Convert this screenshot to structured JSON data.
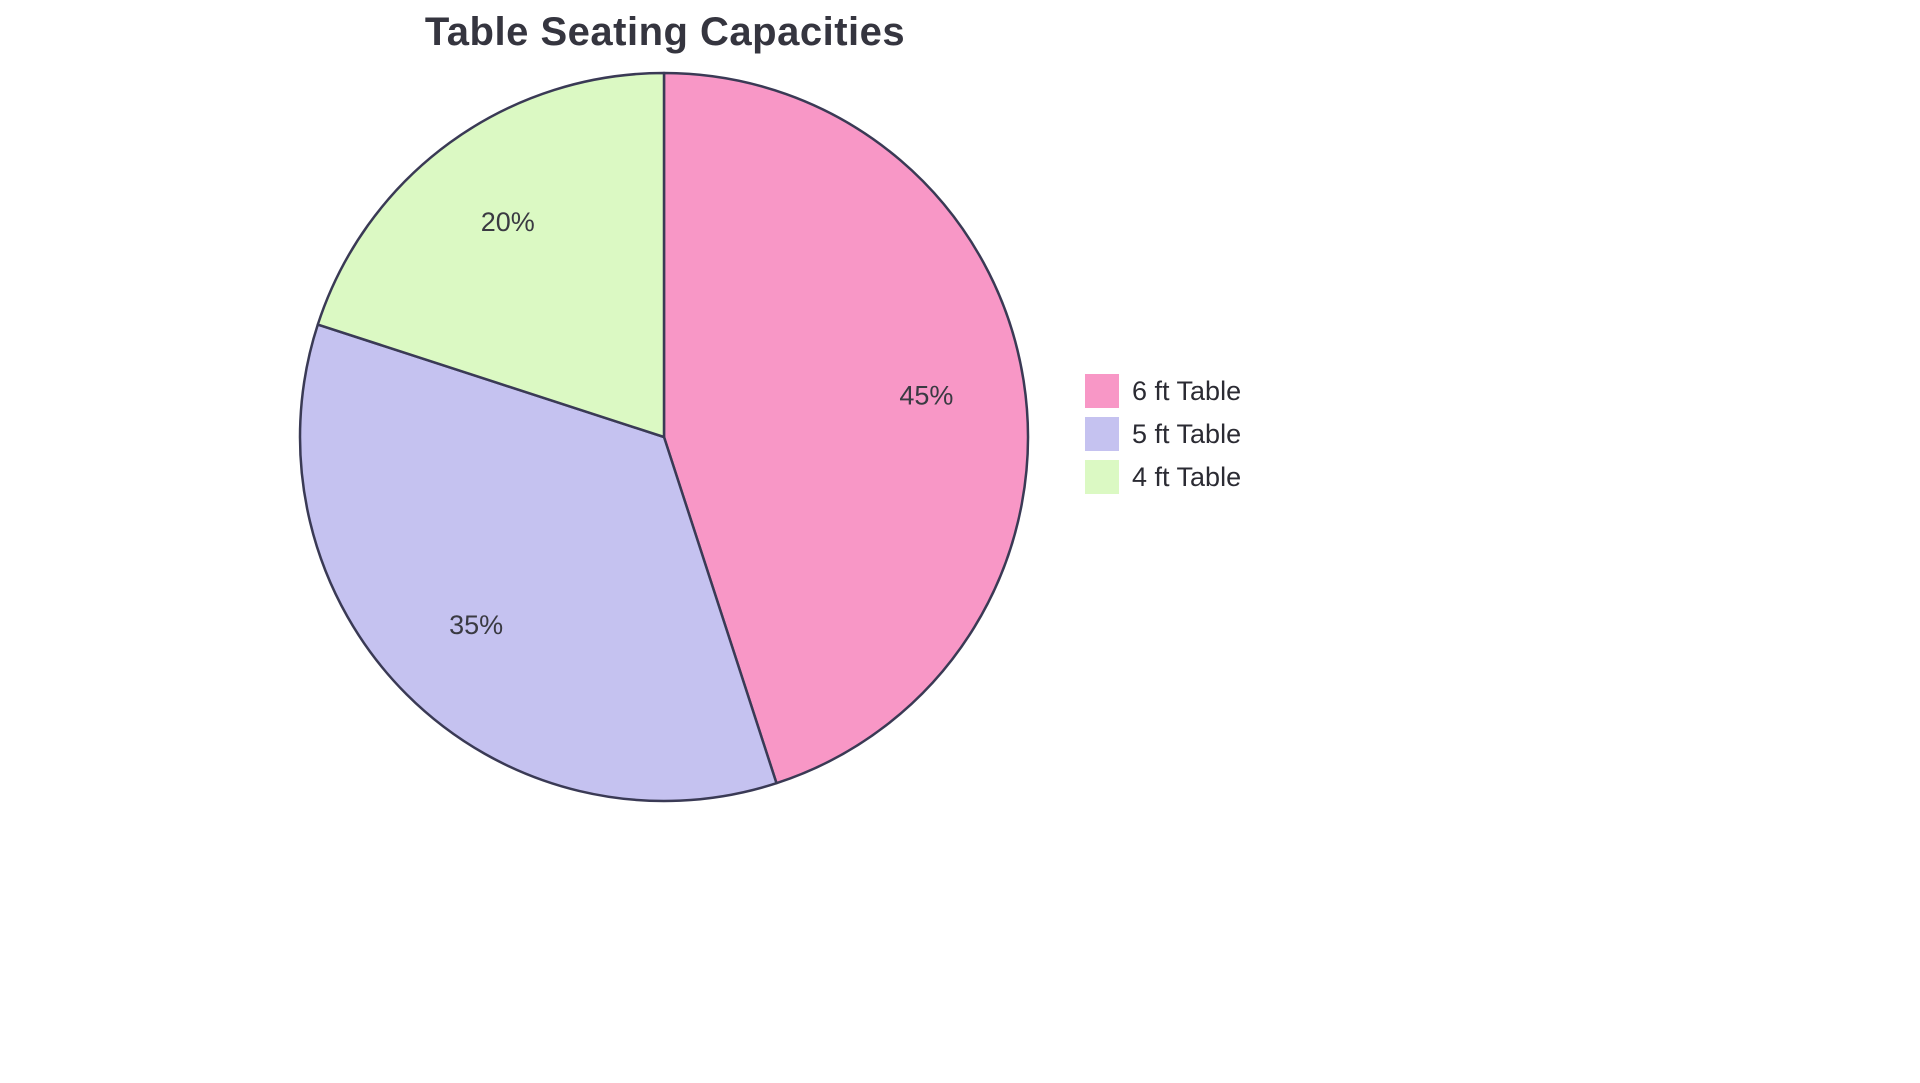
{
  "title": "Table Seating Capacities",
  "chart_data": {
    "type": "pie",
    "title": "Table Seating Capacities",
    "labels": [
      "6 ft Table",
      "5 ft Table",
      "4 ft Table"
    ],
    "values": [
      45,
      35,
      20
    ],
    "percent_labels": [
      "45%",
      "35%",
      "20%"
    ],
    "colors": [
      "#F897C6",
      "#C5C2F0",
      "#DBF9C3"
    ],
    "stroke_color": "#3A3A55",
    "text_color": "#3A3A42",
    "legend_position": "right",
    "start_angle_deg": 0,
    "direction": "clockwise"
  }
}
